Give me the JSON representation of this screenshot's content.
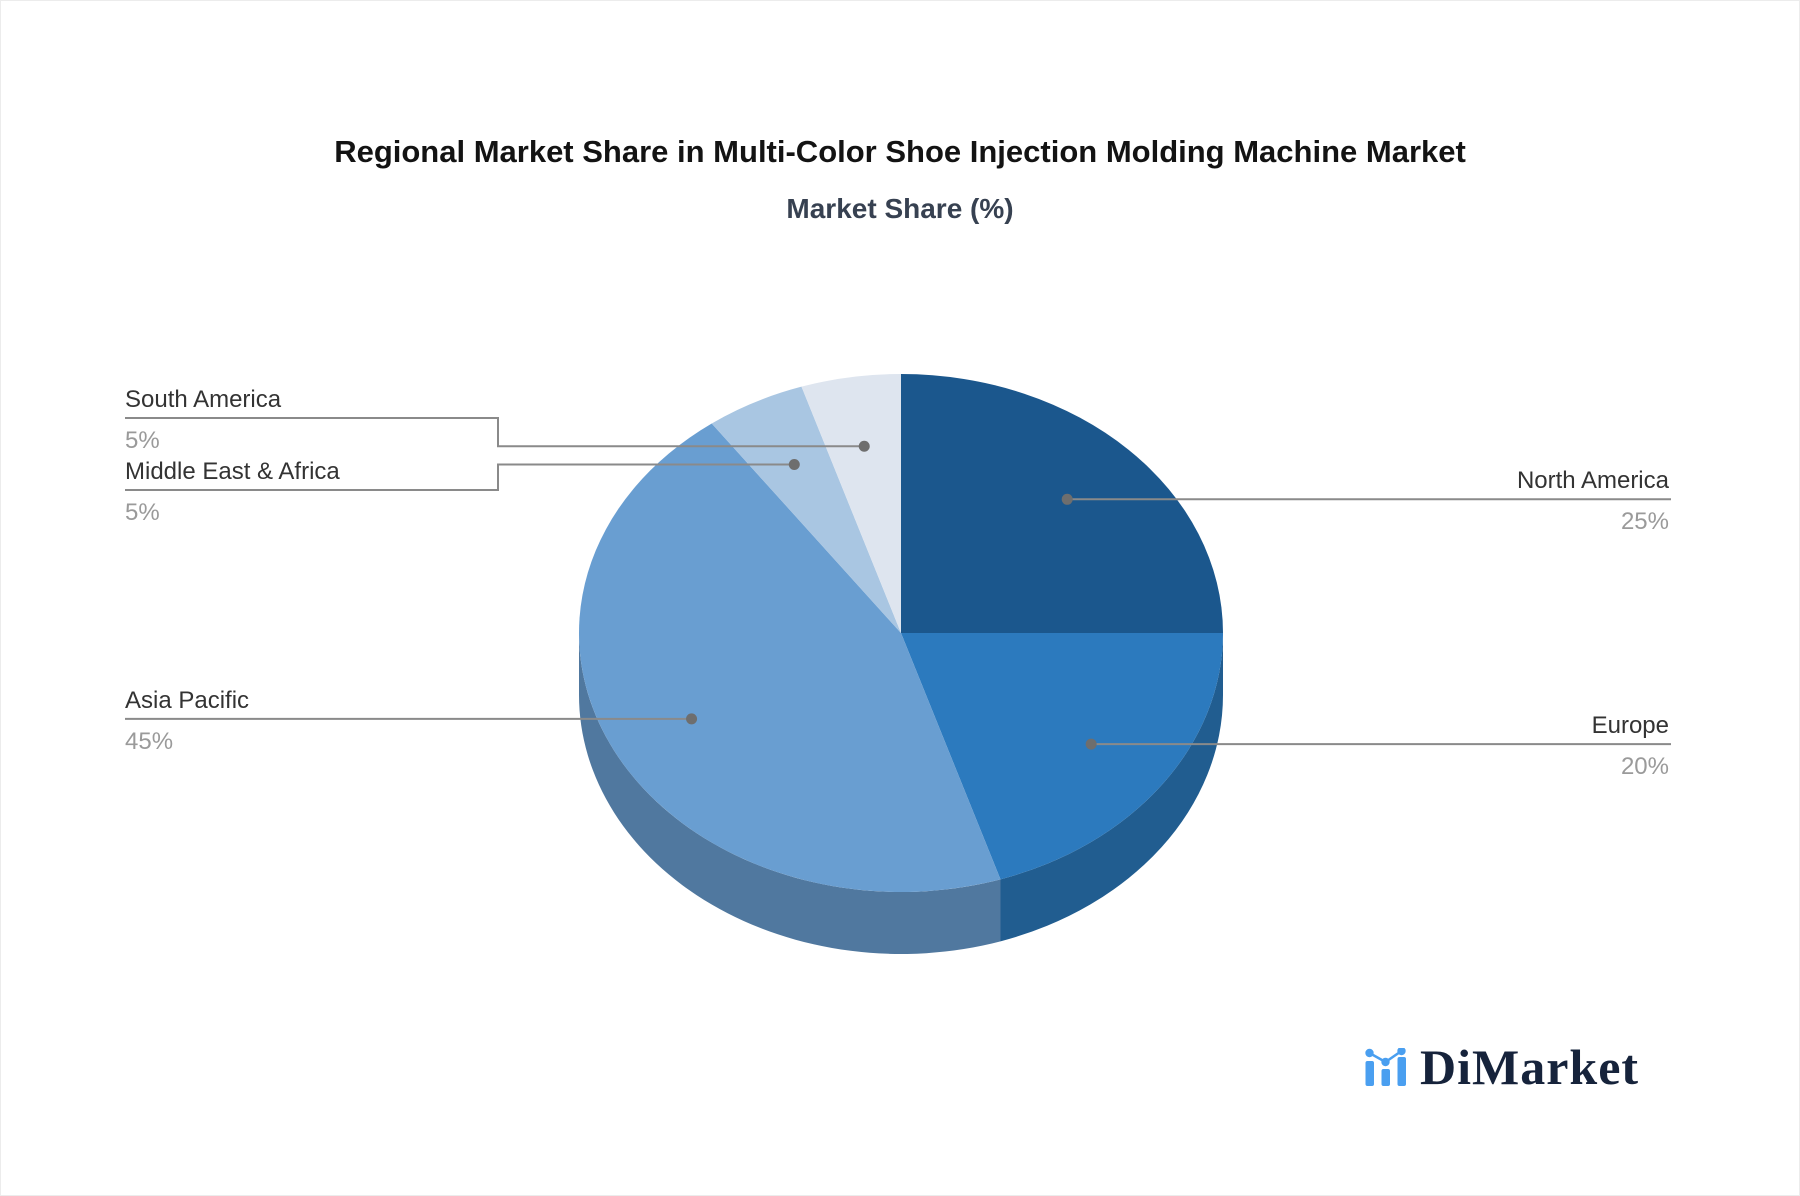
{
  "chart_data": {
    "type": "pie",
    "style": "3d-pie",
    "title": "Regional Market Share in Multi-Color Shoe Injection Molding Machine Market",
    "subtitle": "Market Share (%)",
    "unit": "%",
    "start_angle_deg": 0,
    "direction": "clockwise",
    "slices": [
      {
        "label": "North America",
        "value": 25,
        "display": "25%",
        "color": "#1b578d",
        "label_side": "right"
      },
      {
        "label": "Europe",
        "value": 20,
        "display": "20%",
        "color": "#2c7abe",
        "label_side": "right"
      },
      {
        "label": "Asia Pacific",
        "value": 45,
        "display": "45%",
        "color": "#699ed1",
        "label_side": "left"
      },
      {
        "label": "Middle East & Africa",
        "value": 5,
        "display": "5%",
        "color": "#a9c6e2",
        "label_side": "left"
      },
      {
        "label": "South America",
        "value": 5,
        "display": "5%",
        "color": "#dee5ef",
        "label_side": "left"
      }
    ],
    "label_text_color": "#333333",
    "value_text_color": "#9a9a9a",
    "leader_line_color": "#8a8a8a",
    "leader_dot_color": "#6e6e6e"
  },
  "brand": {
    "name": "DiMarket",
    "icon": "bar-chart-trend-icon",
    "icon_color": "#4a9ff0",
    "text_color": "#16233b"
  }
}
